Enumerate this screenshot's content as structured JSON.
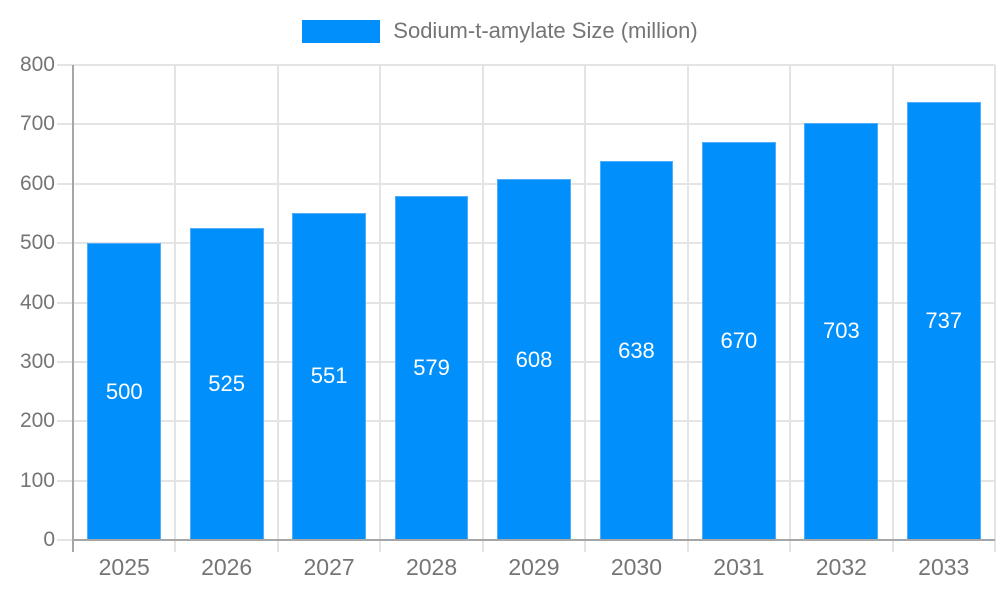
{
  "legend": {
    "series_label": "Sodium-t-amylate Size (million)"
  },
  "colors": {
    "bar": "#008ffb",
    "bar_edge": "#4fadfa",
    "grid": "#e4e4e4",
    "axis": "#a6a6a6",
    "text": "#757575",
    "value_text": "#ffffff",
    "background": "#ffffff"
  },
  "chart_data": {
    "type": "bar",
    "title": "Sodium-t-amylate Size (million)",
    "categories": [
      "2025",
      "2026",
      "2027",
      "2028",
      "2029",
      "2030",
      "2031",
      "2032",
      "2033"
    ],
    "series": [
      {
        "name": "Sodium-t-amylate Size (million)",
        "values": [
          500,
          525,
          551,
          579,
          608,
          638,
          670,
          703,
          737
        ]
      }
    ],
    "xlabel": "",
    "ylabel": "",
    "ylim": [
      0,
      800
    ],
    "ytick_step": 100,
    "ytick_labels": [
      "0",
      "100",
      "200",
      "300",
      "400",
      "500",
      "600",
      "700",
      "800"
    ],
    "grid": true,
    "legend_position": "top-center",
    "value_label_position": "inside-center"
  }
}
